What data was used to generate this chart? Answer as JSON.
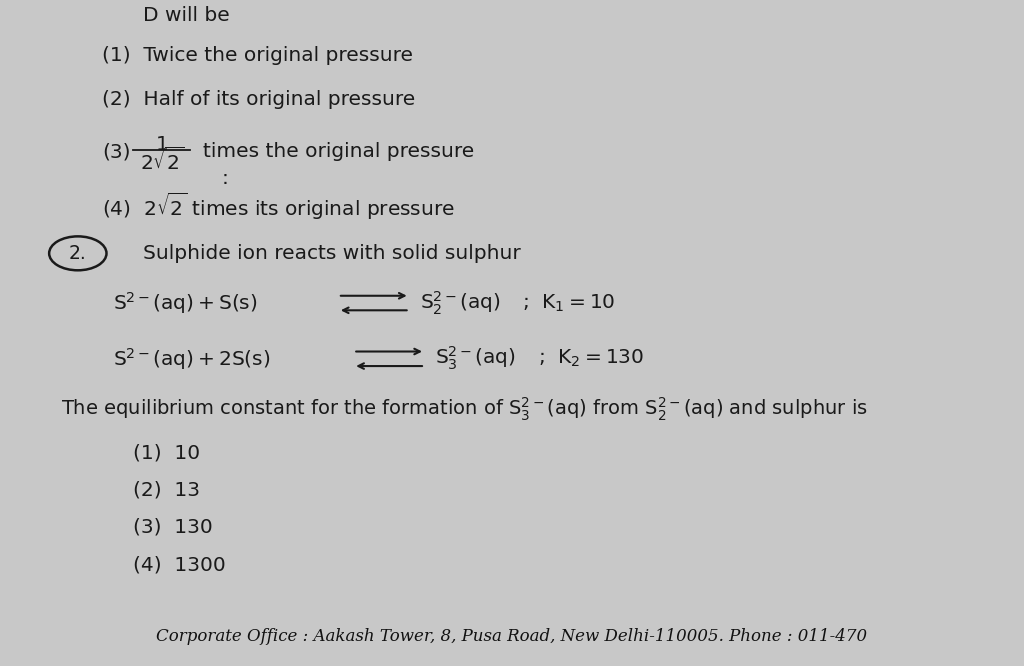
{
  "bg_color": "#c8c8c8",
  "paper_color": "#e8e8e4",
  "footer_bg": "#a8a8a8",
  "text_color": "#1a1a1a",
  "footer_text": "Corporate Office : Aakash Tower, 8, Pusa Road, New Delhi-110005. Phone : 011-470",
  "top_text": "D will be",
  "line1": "(1)  Twice the original pressure",
  "line2": "(2)  Half of its original pressure",
  "line3_pre": "(3)",
  "line3_post": "times the original pressure",
  "line4": "(4)  $2\\sqrt{2}$ times its original pressure",
  "q2_label": "2.",
  "q2_text": "Sulphide ion reacts with solid sulphur",
  "eq1_lhs": "$\\mathrm{S^{2-}(aq)+S(s)}$",
  "eq1_rhs": "$\\mathrm{S_2^{2-}(aq)}$",
  "eq1_k": ";  $\\mathrm{K_1 = 10}$",
  "eq2_lhs": "$\\mathrm{S^{2-}(aq)+2S(s)}$",
  "eq2_rhs": "$\\mathrm{S_3^{2-}(aq)}$",
  "eq2_k": ";  $\\mathrm{K_2 = 130}$",
  "desc": "The equilibrium constant for the formation of $\\mathrm{S_3^{2-}}$(aq) from $\\mathrm{S_2^{2-}}$(aq) and sulphur is",
  "ans1": "(1)  10",
  "ans2": "(2)  13",
  "ans3": "(3)  130",
  "ans4": "(4)  1300"
}
